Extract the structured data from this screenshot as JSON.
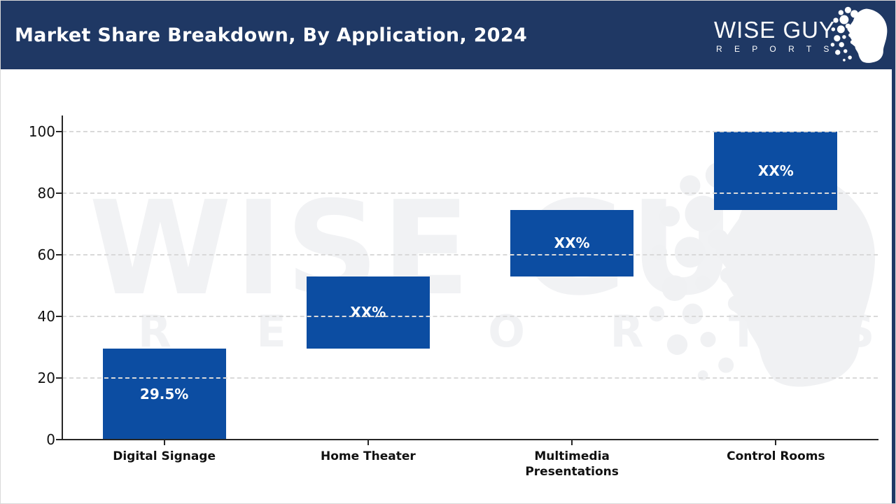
{
  "page": {
    "bg_color": "#ffffff",
    "border_color": "#d9d9d9"
  },
  "header": {
    "bg_color": "#1f3864",
    "title": "Market Share Breakdown, By Application, 2024",
    "logo": {
      "wordmark": "WISE GUY",
      "subtext": "R E P O R T S"
    }
  },
  "watermark": {
    "wordmark": "WISE GU",
    "subtext": "R E P O R T S"
  },
  "chart_data": {
    "type": "bar",
    "subtype": "floating-waterfall",
    "title": "Market Share Breakdown, By Application, 2024",
    "categories": [
      "Digital Signage",
      "Home Theater",
      "Multimedia\nPresentations",
      "Control Rooms"
    ],
    "bars": [
      {
        "category": "Digital Signage",
        "start": 0,
        "end": 29.5,
        "label": "29.5%"
      },
      {
        "category": "Home Theater",
        "start": 29.5,
        "end": 53,
        "label": "XX%"
      },
      {
        "category": "Multimedia Presentations",
        "start": 53,
        "end": 74.5,
        "label": "XX%"
      },
      {
        "category": "Control Rooms",
        "start": 74.5,
        "end": 100,
        "label": "XX%"
      }
    ],
    "yticks": [
      0,
      20,
      40,
      60,
      80,
      100
    ],
    "ylim": [
      0,
      104
    ],
    "xlabel": "",
    "ylabel": "",
    "grid": "horizontal-dashed",
    "legend": false,
    "bar_color": "#0c4da2",
    "bar_label_color": "#ffffff",
    "axis_color": "#262626",
    "grid_color": "#d9d9d9",
    "tick_label_color": "#111111"
  }
}
